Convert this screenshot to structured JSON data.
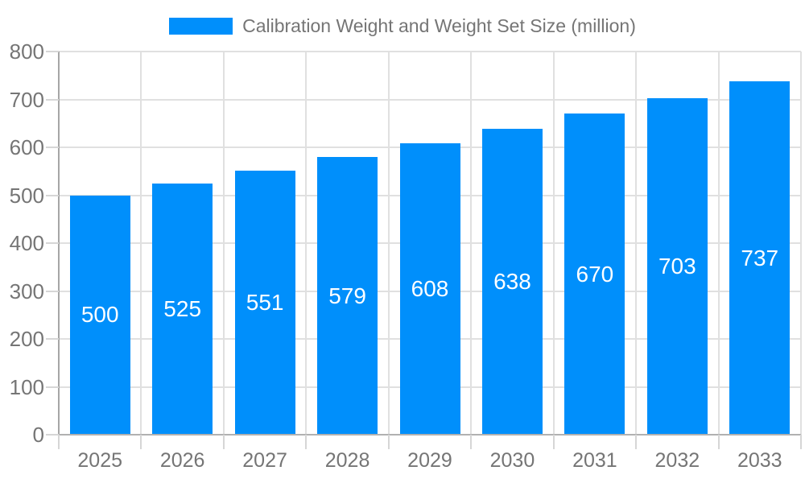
{
  "legend": {
    "label": "Calibration Weight and Weight Set Size (million)"
  },
  "chart_data": {
    "type": "bar",
    "title": "Calibration Weight and Weight Set Size (million)",
    "series_name": "Calibration Weight and Weight Set Size (million)",
    "categories": [
      "2025",
      "2026",
      "2027",
      "2028",
      "2029",
      "2030",
      "2031",
      "2032",
      "2033"
    ],
    "values": [
      500,
      525,
      551,
      579,
      608,
      638,
      670,
      703,
      737
    ],
    "value_labels": [
      "500",
      "525",
      "551",
      "579",
      "608",
      "638",
      "670",
      "703",
      "737"
    ],
    "xlabel": "",
    "ylabel": "",
    "ylim": [
      0,
      800
    ],
    "yticks": [
      0,
      100,
      200,
      300,
      400,
      500,
      600,
      700,
      800
    ],
    "ytick_labels": [
      "0",
      "100",
      "200",
      "300",
      "400",
      "500",
      "600",
      "700",
      "800"
    ],
    "grid": true,
    "legend_position": "top"
  },
  "colors": {
    "bar": "#008FFB",
    "grid": "#e0e0e0",
    "y_axis_line": "#a6a6a6",
    "x_axis_line": "#b1b1b1",
    "axis_tick": "#d6d6d6",
    "label_text": "#757575",
    "value_label_text": "#ffffff",
    "background": "#ffffff"
  }
}
